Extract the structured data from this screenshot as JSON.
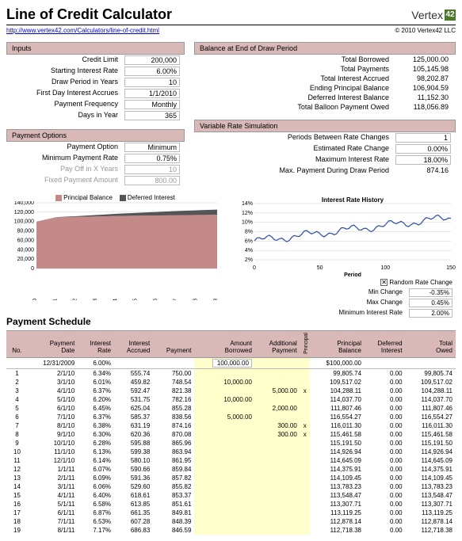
{
  "header": {
    "title": "Line of Credit Calculator",
    "url": "http://www.vertex42.com/Calculators/line-of-credit.html",
    "logo_text": "Vertex",
    "logo_num": "42",
    "copyright": "© 2010 Vertex42 LLC"
  },
  "inputs": {
    "section_title": "Inputs",
    "rows": [
      {
        "label": "Credit Limit",
        "value": "200,000"
      },
      {
        "label": "Starting Interest Rate",
        "value": "6.00%"
      },
      {
        "label": "Draw Period in Years",
        "value": "10"
      },
      {
        "label": "First Day Interest Accrues",
        "value": "1/1/2010"
      },
      {
        "label": "Payment Frequency",
        "value": "Monthly"
      },
      {
        "label": "Days in Year",
        "value": "365"
      }
    ]
  },
  "payment_options": {
    "section_title": "Payment Options",
    "rows": [
      {
        "label": "Payment Option",
        "value": "Minimum",
        "disabled": false
      },
      {
        "label": "Minimum Payment Rate",
        "value": "0.75%",
        "disabled": false
      },
      {
        "label": "Pay Off in X Years",
        "value": "10",
        "disabled": true
      },
      {
        "label": "Fixed Payment Amount",
        "value": "800.00",
        "disabled": true
      }
    ]
  },
  "balance_end": {
    "section_title": "Balance at End of Draw Period",
    "rows": [
      {
        "label": "Total Borrowed",
        "value": "125,000.00"
      },
      {
        "label": "Total Payments",
        "value": "105,145.98"
      },
      {
        "label": "Total Interest Accrued",
        "value": "98,202.87"
      },
      {
        "label": "Ending Principal Balance",
        "value": "106,904.59"
      },
      {
        "label": "Deferred Interest Balance",
        "value": "11,152.30"
      },
      {
        "label": "Total Balloon Payment Owed",
        "value": "118,056.89"
      }
    ]
  },
  "variable_rate": {
    "section_title": "Variable Rate Simulation",
    "rows": [
      {
        "label": "Periods Between Rate Changes",
        "value": "1"
      },
      {
        "label": "Estimated Rate Change",
        "value": "0.00%"
      },
      {
        "label": "Maximum Interest Rate",
        "value": "18.00%"
      },
      {
        "label": "Max. Payment During Draw Period",
        "value": "874.16"
      }
    ]
  },
  "chart_left": {
    "legend": [
      {
        "label": "Principal Balance",
        "color": "#c48a8a"
      },
      {
        "label": "Deferred Interest",
        "color": "#555"
      }
    ],
    "y_ticks": [
      "140,000",
      "120,000",
      "100,000",
      "80,000",
      "60,000",
      "40,000",
      "20,000",
      "0"
    ],
    "x_labels": [
      "2/1/2010",
      "2/1/2011",
      "2/1/2012",
      "2/1/2013",
      "2/1/2014",
      "2/1/2015",
      "2/1/2016",
      "2/1/2017",
      "2/1/2018",
      "2/1/2019"
    ],
    "area_color": "#c48a8a",
    "deferred_color": "#555",
    "bg": "#fff"
  },
  "chart_right": {
    "title": "Interest Rate History",
    "y_ticks": [
      "14%",
      "12%",
      "10%",
      "8%",
      "6%",
      "4%",
      "2%"
    ],
    "x_ticks": [
      "0",
      "50",
      "100",
      "150"
    ],
    "x_label": "Period",
    "line_color": "#2a4aa8"
  },
  "random_rate": {
    "checkbox_label": "Random Rate Change",
    "checked": true,
    "rows": [
      {
        "label": "Min Change",
        "value": "-0.35%"
      },
      {
        "label": "Max Change",
        "value": "0.45%"
      },
      {
        "label": "Minimum Interest Rate",
        "value": "2.00%"
      }
    ]
  },
  "payment_schedule": {
    "title": "Payment Schedule",
    "columns": [
      "No.",
      "Payment Date",
      "Interest Rate",
      "Interest Accrued",
      "Payment",
      "Amount Borrowed",
      "Additional Payment",
      "Principal",
      "Principal Balance",
      "Deferred Interest",
      "Total Owed"
    ],
    "first_row": {
      "date": "12/31/2009",
      "rate": "6.00%",
      "borrowed": "100,000.00",
      "balance": "$100,000.00"
    },
    "rows": [
      {
        "n": "1",
        "date": "2/1/10",
        "rate": "6.34%",
        "acc": "555.74",
        "pay": "750.00",
        "borrow": "",
        "add": "",
        "p": "",
        "bal": "99,805.74",
        "def": "0.00",
        "owed": "99,805.74"
      },
      {
        "n": "2",
        "date": "3/1/10",
        "rate": "6.01%",
        "acc": "459.82",
        "pay": "748.54",
        "borrow": "10,000.00",
        "add": "",
        "p": "",
        "bal": "109,517.02",
        "def": "0.00",
        "owed": "109,517.02"
      },
      {
        "n": "3",
        "date": "4/1/10",
        "rate": "6.37%",
        "acc": "592.47",
        "pay": "821.38",
        "borrow": "",
        "add": "5,000.00",
        "p": "x",
        "bal": "104,288.11",
        "def": "0.00",
        "owed": "104,288.11"
      },
      {
        "n": "4",
        "date": "5/1/10",
        "rate": "6.20%",
        "acc": "531.75",
        "pay": "782.16",
        "borrow": "10,000.00",
        "add": "",
        "p": "",
        "bal": "114,037.70",
        "def": "0.00",
        "owed": "114,037.70"
      },
      {
        "n": "5",
        "date": "6/1/10",
        "rate": "6.45%",
        "acc": "625.04",
        "pay": "855.28",
        "borrow": "",
        "add": "2,000.00",
        "p": "",
        "bal": "111,807.46",
        "def": "0.00",
        "owed": "111,807.46"
      },
      {
        "n": "6",
        "date": "7/1/10",
        "rate": "6.37%",
        "acc": "585.37",
        "pay": "838.56",
        "borrow": "5,000.00",
        "add": "",
        "p": "",
        "bal": "116,554.27",
        "def": "0.00",
        "owed": "116,554.27"
      },
      {
        "n": "7",
        "date": "8/1/10",
        "rate": "6.38%",
        "acc": "631.19",
        "pay": "874.16",
        "borrow": "",
        "add": "300.00",
        "p": "x",
        "bal": "116,011.30",
        "def": "0.00",
        "owed": "116,011.30"
      },
      {
        "n": "8",
        "date": "9/1/10",
        "rate": "6.30%",
        "acc": "620.36",
        "pay": "870.08",
        "borrow": "",
        "add": "300.00",
        "p": "x",
        "bal": "115,461.58",
        "def": "0.00",
        "owed": "115,461.58"
      },
      {
        "n": "9",
        "date": "10/1/10",
        "rate": "6.28%",
        "acc": "595.88",
        "pay": "865.96",
        "borrow": "",
        "add": "",
        "p": "",
        "bal": "115,191.50",
        "def": "0.00",
        "owed": "115,191.50"
      },
      {
        "n": "10",
        "date": "11/1/10",
        "rate": "6.13%",
        "acc": "599.38",
        "pay": "863.94",
        "borrow": "",
        "add": "",
        "p": "",
        "bal": "114,926.94",
        "def": "0.00",
        "owed": "114,926.94"
      },
      {
        "n": "11",
        "date": "12/1/10",
        "rate": "6.14%",
        "acc": "580.10",
        "pay": "861.95",
        "borrow": "",
        "add": "",
        "p": "",
        "bal": "114,645.09",
        "def": "0.00",
        "owed": "114,645.09"
      },
      {
        "n": "12",
        "date": "1/1/11",
        "rate": "6.07%",
        "acc": "590.66",
        "pay": "859.84",
        "borrow": "",
        "add": "",
        "p": "",
        "bal": "114,375.91",
        "def": "0.00",
        "owed": "114,375.91"
      },
      {
        "n": "13",
        "date": "2/1/11",
        "rate": "6.09%",
        "acc": "591.36",
        "pay": "857.82",
        "borrow": "",
        "add": "",
        "p": "",
        "bal": "114,109.45",
        "def": "0.00",
        "owed": "114,109.45"
      },
      {
        "n": "14",
        "date": "3/1/11",
        "rate": "6.06%",
        "acc": "529.60",
        "pay": "855.82",
        "borrow": "",
        "add": "",
        "p": "",
        "bal": "113,783.23",
        "def": "0.00",
        "owed": "113,783.23"
      },
      {
        "n": "15",
        "date": "4/1/11",
        "rate": "6.40%",
        "acc": "618.61",
        "pay": "853.37",
        "borrow": "",
        "add": "",
        "p": "",
        "bal": "113,548.47",
        "def": "0.00",
        "owed": "113,548.47"
      },
      {
        "n": "16",
        "date": "5/1/11",
        "rate": "6.58%",
        "acc": "613.85",
        "pay": "851.61",
        "borrow": "",
        "add": "",
        "p": "",
        "bal": "113,307.71",
        "def": "0.00",
        "owed": "113,307.71"
      },
      {
        "n": "17",
        "date": "6/1/11",
        "rate": "6.87%",
        "acc": "661.35",
        "pay": "849.81",
        "borrow": "",
        "add": "",
        "p": "",
        "bal": "113,119.25",
        "def": "0.00",
        "owed": "113,119.25"
      },
      {
        "n": "18",
        "date": "7/1/11",
        "rate": "6.53%",
        "acc": "607.28",
        "pay": "848.39",
        "borrow": "",
        "add": "",
        "p": "",
        "bal": "112,878.14",
        "def": "0.00",
        "owed": "112,878.14"
      },
      {
        "n": "19",
        "date": "8/1/11",
        "rate": "7.17%",
        "acc": "686.83",
        "pay": "846.59",
        "borrow": "",
        "add": "",
        "p": "",
        "bal": "112,718.38",
        "def": "0.00",
        "owed": "112,718.38"
      }
    ]
  }
}
